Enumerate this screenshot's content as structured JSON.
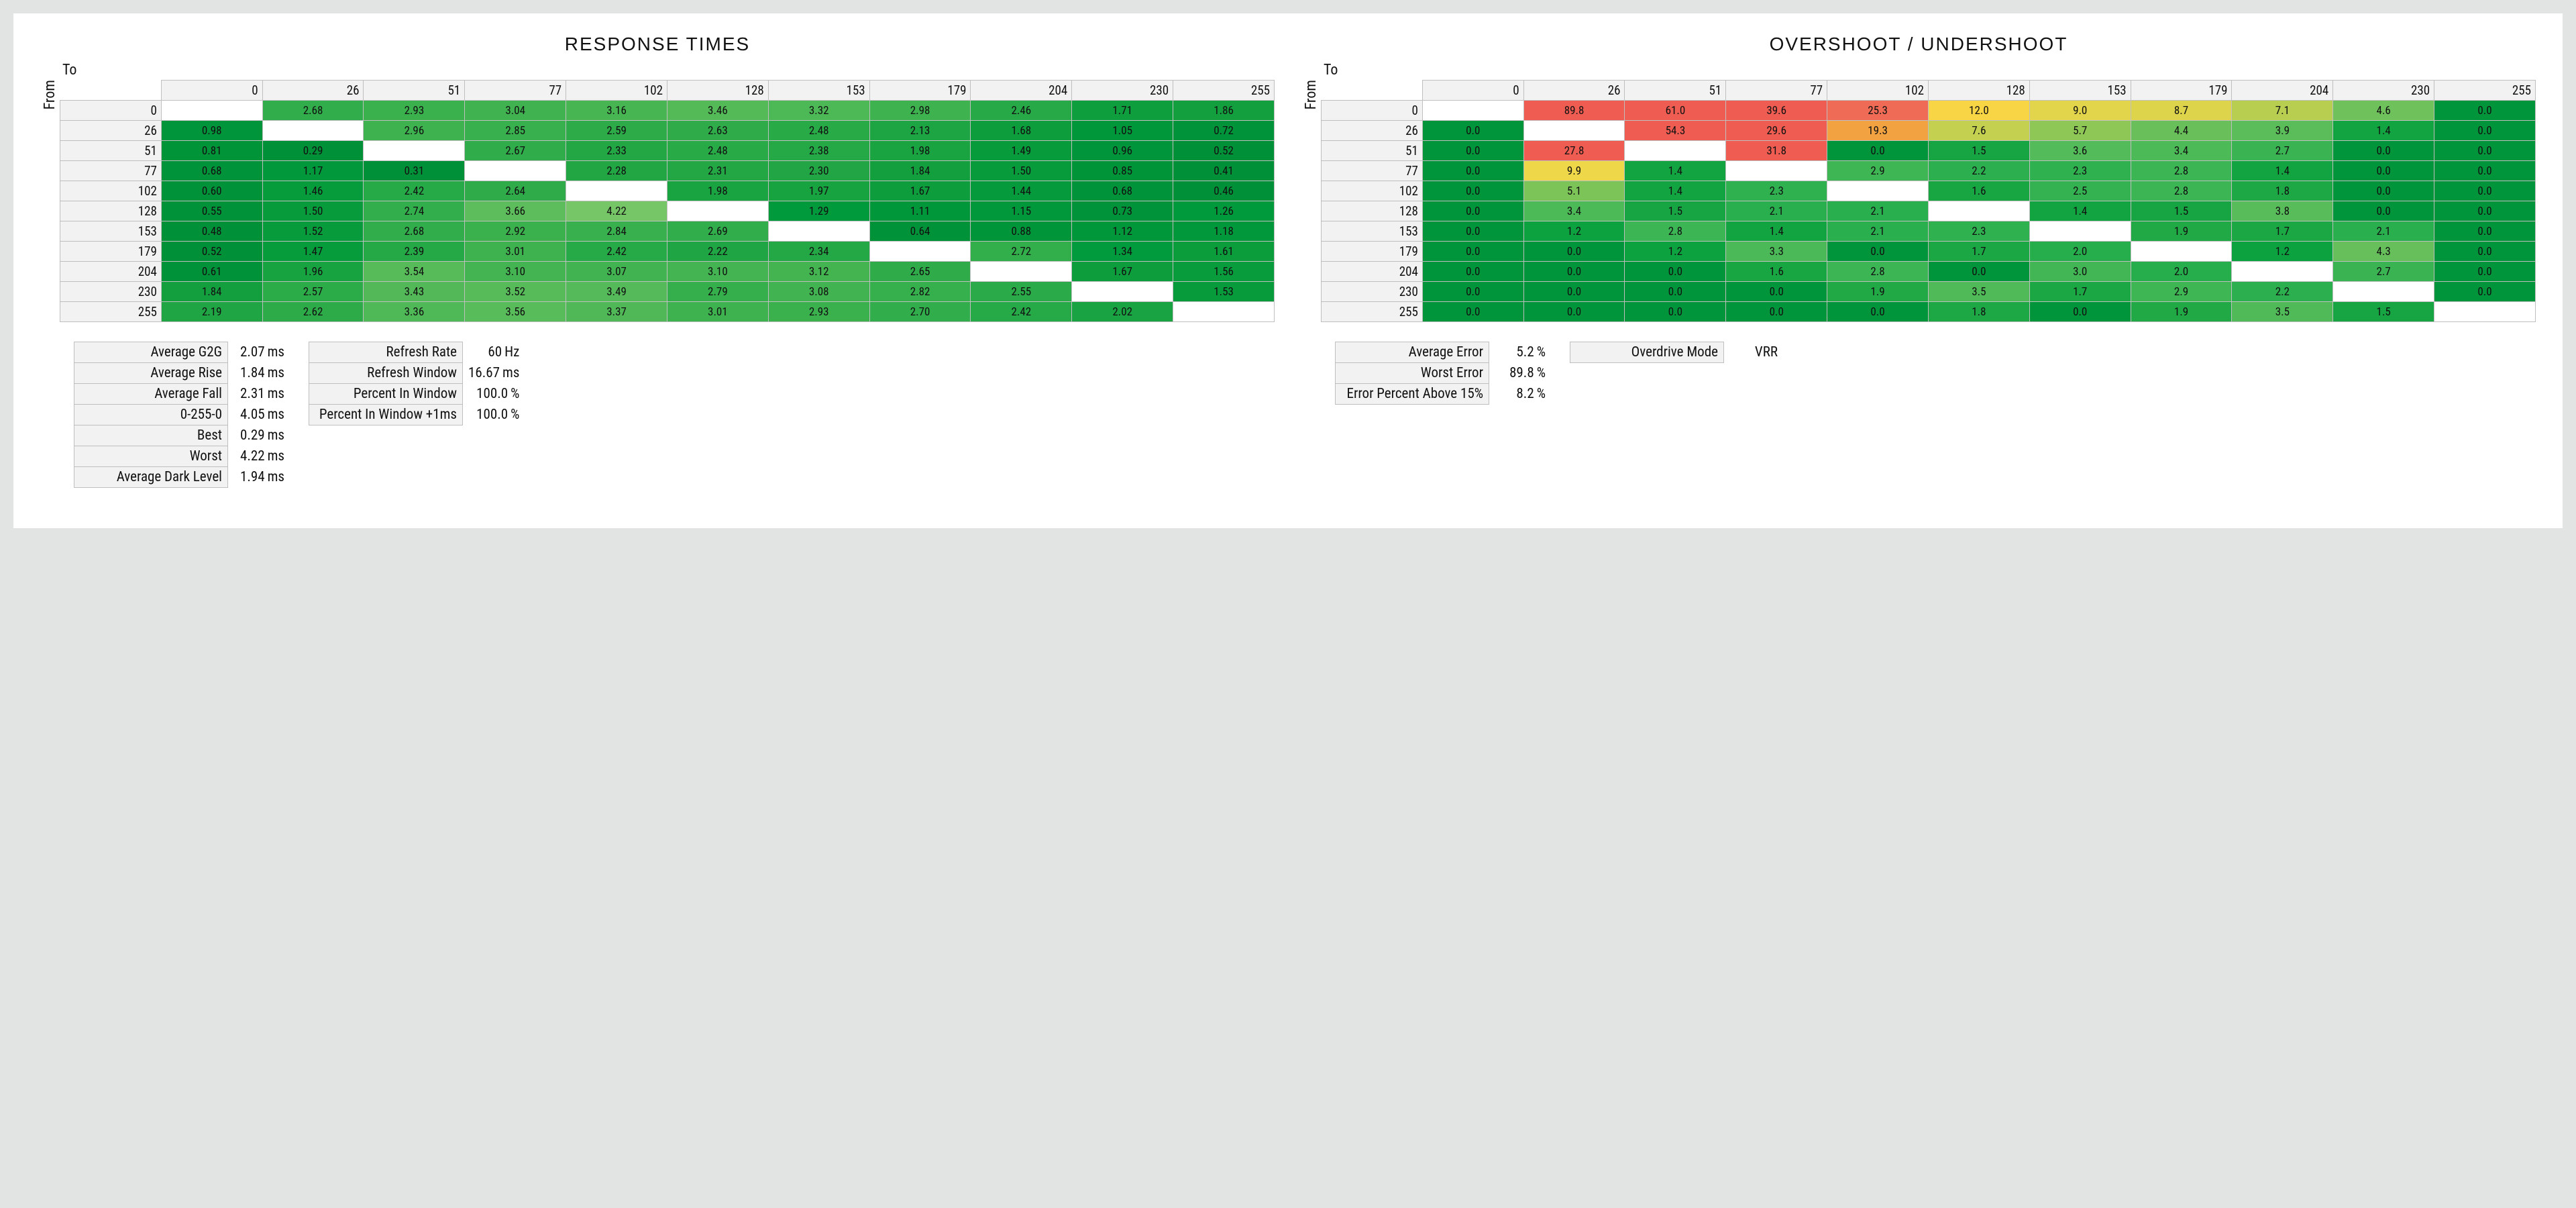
{
  "background_color": "#e2e3e3",
  "sheet_color": "#ffffff",
  "grid_border_color": "#bfbfbf",
  "header_fill": "#f2f2f2",
  "levels": [
    "0",
    "26",
    "51",
    "77",
    "102",
    "128",
    "153",
    "179",
    "204",
    "230",
    "255"
  ],
  "axis_labels": {
    "to": "To",
    "from": "From"
  },
  "response": {
    "title": "RESPONSE TIMES",
    "type": "heatmap",
    "cell_fontsize": 17,
    "rows": [
      [
        null,
        {
          "v": "2.68",
          "c": "#31ad4b"
        },
        {
          "v": "2.93",
          "c": "#3bb14e"
        },
        {
          "v": "3.04",
          "c": "#40b350"
        },
        {
          "v": "3.16",
          "c": "#46b552"
        },
        {
          "v": "3.46",
          "c": "#54ba58"
        },
        {
          "v": "3.32",
          "c": "#4db856"
        },
        {
          "v": "2.98",
          "c": "#3eb24f"
        },
        {
          "v": "2.46",
          "c": "#27a947"
        },
        {
          "v": "1.71",
          "c": "#0e9e3d"
        },
        {
          "v": "1.86",
          "c": "#149f3f"
        }
      ],
      [
        {
          "v": "0.98",
          "c": "#00953a"
        },
        null,
        {
          "v": "2.96",
          "c": "#3db24f"
        },
        {
          "v": "2.85",
          "c": "#38b04d"
        },
        {
          "v": "2.59",
          "c": "#2dab49"
        },
        {
          "v": "2.63",
          "c": "#2fab4a"
        },
        {
          "v": "2.48",
          "c": "#28aa47"
        },
        {
          "v": "2.13",
          "c": "#1ea543"
        },
        {
          "v": "1.68",
          "c": "#0d9d3d"
        },
        {
          "v": "1.05",
          "c": "#00963a"
        },
        {
          "v": "0.72",
          "c": "#009339"
        }
      ],
      [
        {
          "v": "0.81",
          "c": "#009439"
        },
        {
          "v": "0.29",
          "c": "#009037"
        },
        null,
        {
          "v": "2.67",
          "c": "#30ac4a"
        },
        {
          "v": "2.33",
          "c": "#23a745"
        },
        {
          "v": "2.48",
          "c": "#28aa47"
        },
        {
          "v": "2.38",
          "c": "#25a846"
        },
        {
          "v": "1.98",
          "c": "#19a341"
        },
        {
          "v": "1.49",
          "c": "#079b3b"
        },
        {
          "v": "0.96",
          "c": "#00953a"
        },
        {
          "v": "0.52",
          "c": "#009138"
        }
      ],
      [
        {
          "v": "0.68",
          "c": "#009339"
        },
        {
          "v": "1.17",
          "c": "#00983b"
        },
        {
          "v": "0.31",
          "c": "#009037"
        },
        null,
        {
          "v": "2.28",
          "c": "#22a644"
        },
        {
          "v": "2.31",
          "c": "#23a745"
        },
        {
          "v": "2.30",
          "c": "#22a645"
        },
        {
          "v": "1.84",
          "c": "#149f3f"
        },
        {
          "v": "1.50",
          "c": "#079b3b"
        },
        {
          "v": "0.85",
          "c": "#009439"
        },
        {
          "v": "0.41",
          "c": "#009037"
        }
      ],
      [
        {
          "v": "0.60",
          "c": "#009238"
        },
        {
          "v": "1.46",
          "c": "#069b3b"
        },
        {
          "v": "2.42",
          "c": "#26a947"
        },
        {
          "v": "2.64",
          "c": "#2fab4a"
        },
        null,
        {
          "v": "1.98",
          "c": "#19a341"
        },
        {
          "v": "1.97",
          "c": "#18a341"
        },
        {
          "v": "1.67",
          "c": "#0d9d3d"
        },
        {
          "v": "1.44",
          "c": "#059a3b"
        },
        {
          "v": "0.68",
          "c": "#009339"
        },
        {
          "v": "0.46",
          "c": "#009138"
        }
      ],
      [
        {
          "v": "0.55",
          "c": "#009238"
        },
        {
          "v": "1.50",
          "c": "#079b3b"
        },
        {
          "v": "2.74",
          "c": "#33ae4c"
        },
        {
          "v": "3.66",
          "c": "#5dbd5c"
        },
        {
          "v": "4.22",
          "c": "#76c667"
        },
        null,
        {
          "v": "1.29",
          "c": "#009a3c"
        },
        {
          "v": "1.11",
          "c": "#00973b"
        },
        {
          "v": "1.15",
          "c": "#00983b"
        },
        {
          "v": "0.73",
          "c": "#009339"
        },
        {
          "v": "1.26",
          "c": "#00993c"
        }
      ],
      [
        {
          "v": "0.48",
          "c": "#009138"
        },
        {
          "v": "1.52",
          "c": "#089b3c"
        },
        {
          "v": "2.68",
          "c": "#31ad4b"
        },
        {
          "v": "2.92",
          "c": "#3bb14e"
        },
        {
          "v": "2.84",
          "c": "#37b04d"
        },
        {
          "v": "2.69",
          "c": "#31ad4b"
        },
        null,
        {
          "v": "0.64",
          "c": "#009238"
        },
        {
          "v": "0.88",
          "c": "#009539"
        },
        {
          "v": "1.12",
          "c": "#00973b"
        },
        {
          "v": "1.18",
          "c": "#00983b"
        }
      ],
      [
        {
          "v": "0.52",
          "c": "#009138"
        },
        {
          "v": "1.47",
          "c": "#069b3b"
        },
        {
          "v": "2.39",
          "c": "#25a846"
        },
        {
          "v": "3.01",
          "c": "#3fb250"
        },
        {
          "v": "2.42",
          "c": "#26a947"
        },
        {
          "v": "2.22",
          "c": "#20a544"
        },
        {
          "v": "2.34",
          "c": "#24a745"
        },
        null,
        {
          "v": "2.72",
          "c": "#32ae4b"
        },
        {
          "v": "1.34",
          "c": "#019a3c"
        },
        {
          "v": "1.61",
          "c": "#0b9c3c"
        }
      ],
      [
        {
          "v": "0.61",
          "c": "#009238"
        },
        {
          "v": "1.96",
          "c": "#18a341"
        },
        {
          "v": "3.54",
          "c": "#58bb5a"
        },
        {
          "v": "3.10",
          "c": "#43b451"
        },
        {
          "v": "3.07",
          "c": "#42b351"
        },
        {
          "v": "3.10",
          "c": "#43b451"
        },
        {
          "v": "3.12",
          "c": "#44b451"
        },
        {
          "v": "2.65",
          "c": "#2fab4a"
        },
        null,
        {
          "v": "1.67",
          "c": "#0d9d3d"
        },
        {
          "v": "1.56",
          "c": "#099c3c"
        }
      ],
      [
        {
          "v": "1.84",
          "c": "#149f3f"
        },
        {
          "v": "2.57",
          "c": "#2cab49"
        },
        {
          "v": "3.43",
          "c": "#53b958"
        },
        {
          "v": "3.52",
          "c": "#57bb5a"
        },
        {
          "v": "3.49",
          "c": "#55ba59"
        },
        {
          "v": "2.79",
          "c": "#35af4c"
        },
        {
          "v": "3.08",
          "c": "#42b351"
        },
        {
          "v": "2.82",
          "c": "#36af4d"
        },
        {
          "v": "2.55",
          "c": "#2baa49"
        },
        null,
        {
          "v": "1.53",
          "c": "#089b3c"
        }
      ],
      [
        {
          "v": "2.19",
          "c": "#1fa543"
        },
        {
          "v": "2.62",
          "c": "#2eab49"
        },
        {
          "v": "3.36",
          "c": "#4fb857"
        },
        {
          "v": "3.56",
          "c": "#59bc5b"
        },
        {
          "v": "3.37",
          "c": "#50b857"
        },
        {
          "v": "3.01",
          "c": "#3fb250"
        },
        {
          "v": "2.93",
          "c": "#3bb14e"
        },
        {
          "v": "2.70",
          "c": "#31ad4b"
        },
        {
          "v": "2.42",
          "c": "#26a947"
        },
        {
          "v": "2.02",
          "c": "#1aa342"
        },
        null
      ]
    ]
  },
  "overshoot": {
    "title": "OVERSHOOT / UNDERSHOOT",
    "type": "heatmap",
    "cell_fontsize": 17,
    "rows": [
      [
        null,
        {
          "v": "89.8",
          "c": "#ee5c52"
        },
        {
          "v": "61.0",
          "c": "#ee5c52"
        },
        {
          "v": "39.6",
          "c": "#ee5c52"
        },
        {
          "v": "25.3",
          "c": "#ef6b56"
        },
        {
          "v": "12.0",
          "c": "#f8d545"
        },
        {
          "v": "9.0",
          "c": "#e3d54b"
        },
        {
          "v": "8.7",
          "c": "#ddd44c"
        },
        {
          "v": "7.1",
          "c": "#b8ce51"
        },
        {
          "v": "4.6",
          "c": "#6fc15b"
        },
        {
          "v": "0.0",
          "c": "#00953a"
        }
      ],
      [
        {
          "v": "0.0",
          "c": "#00953a"
        },
        null,
        {
          "v": "54.3",
          "c": "#ee5c52"
        },
        {
          "v": "29.6",
          "c": "#ee5c52"
        },
        {
          "v": "19.3",
          "c": "#f2a241"
        },
        {
          "v": "7.6",
          "c": "#c3d050"
        },
        {
          "v": "5.7",
          "c": "#8ec755"
        },
        {
          "v": "4.4",
          "c": "#69c05a"
        },
        {
          "v": "3.9",
          "c": "#5bbd5a"
        },
        {
          "v": "1.4",
          "c": "#12a441"
        },
        {
          "v": "0.0",
          "c": "#00953a"
        }
      ],
      [
        {
          "v": "0.0",
          "c": "#00953a"
        },
        {
          "v": "27.8",
          "c": "#ee5c52"
        },
        null,
        {
          "v": "31.8",
          "c": "#ee5c52"
        },
        {
          "v": "0.0",
          "c": "#00953a"
        },
        {
          "v": "1.5",
          "c": "#16a542"
        },
        {
          "v": "3.6",
          "c": "#53bb59"
        },
        {
          "v": "3.4",
          "c": "#4dba58"
        },
        {
          "v": "2.7",
          "c": "#3ab453"
        },
        {
          "v": "0.0",
          "c": "#00953a"
        },
        {
          "v": "0.0",
          "c": "#00953a"
        }
      ],
      [
        {
          "v": "0.0",
          "c": "#00953a"
        },
        {
          "v": "9.9",
          "c": "#eed748"
        },
        {
          "v": "1.4",
          "c": "#12a441"
        },
        null,
        {
          "v": "2.9",
          "c": "#3fb654"
        },
        {
          "v": "2.2",
          "c": "#2cb04f"
        },
        {
          "v": "2.3",
          "c": "#2fb150"
        },
        {
          "v": "2.8",
          "c": "#3cb554"
        },
        {
          "v": "1.4",
          "c": "#12a441"
        },
        {
          "v": "0.0",
          "c": "#00953a"
        },
        {
          "v": "0.0",
          "c": "#00953a"
        }
      ],
      [
        {
          "v": "0.0",
          "c": "#00953a"
        },
        {
          "v": "5.1",
          "c": "#7dc458"
        },
        {
          "v": "1.4",
          "c": "#12a441"
        },
        {
          "v": "2.3",
          "c": "#2fb150"
        },
        null,
        {
          "v": "1.6",
          "c": "#18a643"
        },
        {
          "v": "2.5",
          "c": "#34b251"
        },
        {
          "v": "2.8",
          "c": "#3cb554"
        },
        {
          "v": "1.8",
          "c": "#1ea845"
        },
        {
          "v": "0.0",
          "c": "#00953a"
        },
        {
          "v": "0.0",
          "c": "#00953a"
        }
      ],
      [
        {
          "v": "0.0",
          "c": "#00953a"
        },
        {
          "v": "3.4",
          "c": "#4dba58"
        },
        {
          "v": "1.5",
          "c": "#16a542"
        },
        {
          "v": "2.1",
          "c": "#29af4e"
        },
        {
          "v": "2.1",
          "c": "#29af4e"
        },
        null,
        {
          "v": "1.4",
          "c": "#12a441"
        },
        {
          "v": "1.5",
          "c": "#16a542"
        },
        {
          "v": "3.8",
          "c": "#58bc5a"
        },
        {
          "v": "0.0",
          "c": "#00953a"
        },
        {
          "v": "0.0",
          "c": "#00953a"
        }
      ],
      [
        {
          "v": "0.0",
          "c": "#00953a"
        },
        {
          "v": "1.2",
          "c": "#0ca240"
        },
        {
          "v": "2.8",
          "c": "#3cb554"
        },
        {
          "v": "1.4",
          "c": "#12a441"
        },
        {
          "v": "2.1",
          "c": "#29af4e"
        },
        {
          "v": "2.3",
          "c": "#2fb150"
        },
        null,
        {
          "v": "1.9",
          "c": "#21a946"
        },
        {
          "v": "1.7",
          "c": "#1ba744"
        },
        {
          "v": "2.1",
          "c": "#29af4e"
        },
        {
          "v": "0.0",
          "c": "#00953a"
        }
      ],
      [
        {
          "v": "0.0",
          "c": "#00953a"
        },
        {
          "v": "0.0",
          "c": "#00953a"
        },
        {
          "v": "1.2",
          "c": "#0ca240"
        },
        {
          "v": "3.3",
          "c": "#4bb957"
        },
        {
          "v": "0.0",
          "c": "#00953a"
        },
        {
          "v": "1.7",
          "c": "#1ba744"
        },
        {
          "v": "2.0",
          "c": "#26ae4d"
        },
        null,
        {
          "v": "1.2",
          "c": "#0ca240"
        },
        {
          "v": "4.3",
          "c": "#66bf5a"
        },
        {
          "v": "0.0",
          "c": "#00953a"
        }
      ],
      [
        {
          "v": "0.0",
          "c": "#00953a"
        },
        {
          "v": "0.0",
          "c": "#00953a"
        },
        {
          "v": "0.0",
          "c": "#00953a"
        },
        {
          "v": "1.6",
          "c": "#18a643"
        },
        {
          "v": "2.8",
          "c": "#3cb554"
        },
        {
          "v": "0.0",
          "c": "#00953a"
        },
        {
          "v": "3.0",
          "c": "#42b655"
        },
        {
          "v": "2.0",
          "c": "#26ae4d"
        },
        null,
        {
          "v": "2.7",
          "c": "#3ab453"
        },
        {
          "v": "0.0",
          "c": "#00953a"
        }
      ],
      [
        {
          "v": "0.0",
          "c": "#00953a"
        },
        {
          "v": "0.0",
          "c": "#00953a"
        },
        {
          "v": "0.0",
          "c": "#00953a"
        },
        {
          "v": "0.0",
          "c": "#00953a"
        },
        {
          "v": "1.9",
          "c": "#21a946"
        },
        {
          "v": "3.5",
          "c": "#50ba58"
        },
        {
          "v": "1.7",
          "c": "#1ba744"
        },
        {
          "v": "2.9",
          "c": "#3fb654"
        },
        {
          "v": "2.2",
          "c": "#2cb04f"
        },
        null,
        {
          "v": "0.0",
          "c": "#00953a"
        }
      ],
      [
        {
          "v": "0.0",
          "c": "#00953a"
        },
        {
          "v": "0.0",
          "c": "#00953a"
        },
        {
          "v": "0.0",
          "c": "#00953a"
        },
        {
          "v": "0.0",
          "c": "#00953a"
        },
        {
          "v": "0.0",
          "c": "#00953a"
        },
        {
          "v": "1.8",
          "c": "#1ea845"
        },
        {
          "v": "0.0",
          "c": "#00953a"
        },
        {
          "v": "1.9",
          "c": "#21a946"
        },
        {
          "v": "3.5",
          "c": "#50ba58"
        },
        {
          "v": "1.5",
          "c": "#16a542"
        },
        null
      ]
    ]
  },
  "summary_left_a": [
    {
      "label": "Average G2G",
      "value": "2.07",
      "unit": "ms"
    },
    {
      "label": "Average Rise",
      "value": "1.84",
      "unit": "ms"
    },
    {
      "label": "Average Fall",
      "value": "2.31",
      "unit": "ms"
    },
    {
      "label": "0-255-0",
      "value": "4.05",
      "unit": "ms"
    },
    {
      "label": "Best",
      "value": "0.29",
      "unit": "ms"
    },
    {
      "label": "Worst",
      "value": "4.22",
      "unit": "ms"
    },
    {
      "label": "Average Dark Level",
      "value": "1.94",
      "unit": "ms"
    }
  ],
  "summary_left_b": [
    {
      "label": "Refresh Rate",
      "value": "60",
      "unit": "Hz"
    },
    {
      "label": "Refresh Window",
      "value": "16.67",
      "unit": "ms"
    },
    {
      "label": "Percent In Window",
      "value": "100.0",
      "unit": "%"
    },
    {
      "label": "Percent In Window +1ms",
      "value": "100.0",
      "unit": "%"
    }
  ],
  "summary_right_a": [
    {
      "label": "Average Error",
      "value": "5.2",
      "unit": "%"
    },
    {
      "label": "Worst Error",
      "value": "89.8",
      "unit": "%"
    },
    {
      "label": "Error Percent Above 15%",
      "value": "8.2",
      "unit": "%"
    }
  ],
  "summary_right_b": [
    {
      "label": "Overdrive Mode",
      "value": "VRR",
      "unit": ""
    }
  ]
}
